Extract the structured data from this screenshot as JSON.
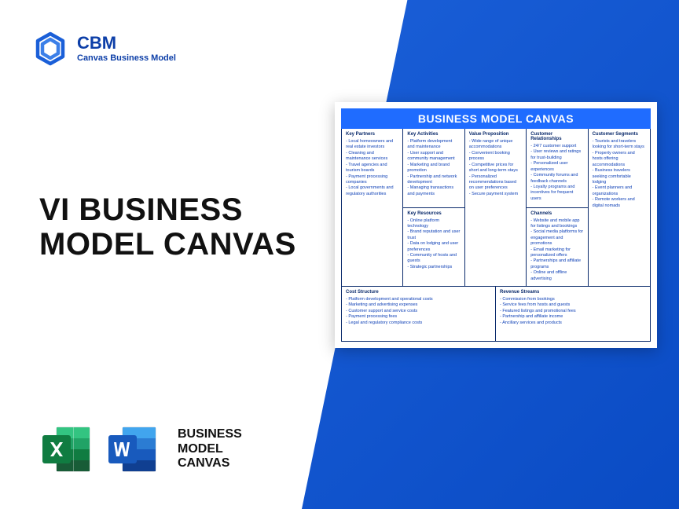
{
  "colors": {
    "brand_blue": "#0d3fa8",
    "canvas_header": "#1f6cff",
    "canvas_border": "#0a2a6b",
    "canvas_text": "#0a3db5",
    "excel_dark": "#107c41",
    "excel_light": "#21a366",
    "word_dark": "#1b5cbe",
    "word_light": "#2b7cd3"
  },
  "logo": {
    "abbr": "CBM",
    "full": "Canvas Business Model"
  },
  "headline": {
    "line1": "VI BUSINESS",
    "line2": "MODEL CANVAS"
  },
  "bottom_label": {
    "line1": "BUSINESS",
    "line2": "MODEL",
    "line3": "CANVAS"
  },
  "canvas": {
    "title": "BUSINESS MODEL CANVAS",
    "sections": {
      "key_partners": {
        "title": "Key Partners",
        "items": [
          "Local homeowners and real estate investors",
          "Cleaning and maintenance services",
          "Travel agencies and tourism boards",
          "Payment processing companies",
          "Local governments and regulatory authorities"
        ]
      },
      "key_activities": {
        "title": "Key Activities",
        "items": [
          "Platform development and maintenance",
          "User support and community management",
          "Marketing and brand promotion",
          "Partnership and network development",
          "Managing transactions and payments"
        ]
      },
      "key_resources": {
        "title": "Key Resources",
        "items": [
          "Online platform technology",
          "Brand reputation and user trust",
          "Data on lodging and user preferences",
          "Community of hosts and guests",
          "Strategic partnerships"
        ]
      },
      "value_proposition": {
        "title": "Value Proposition",
        "items": [
          "Wide range of unique accommodations",
          "Convenient booking process",
          "Competitive prices for short and long-term stays",
          "Personalized recommendations based on user preferences",
          "Secure payment system"
        ]
      },
      "customer_relationships": {
        "title": "Customer Relationships",
        "items": [
          "24/7 customer support",
          "User reviews and ratings for trust-building",
          "Personalized user experiences",
          "Community forums and feedback channels",
          "Loyalty programs and incentives for frequent users"
        ]
      },
      "channels": {
        "title": "Channels",
        "items": [
          "Website and mobile app for listings and bookings",
          "Social media platforms for engagement and promotions",
          "Email marketing for personalized offers",
          "Partnerships and affiliate programs",
          "Online and offline advertising"
        ]
      },
      "customer_segments": {
        "title": "Customer Segments",
        "items": [
          "Tourists and travelers looking for short-term stays",
          "Property owners and hosts offering accommodations",
          "Business travelers seeking comfortable lodging",
          "Event planners and organizations",
          "Remote workers and digital nomads"
        ]
      },
      "cost_structure": {
        "title": "Cost Structure",
        "items": [
          "Platform development and operational costs",
          "Marketing and advertising expenses",
          "Customer support and service costs",
          "Payment processing fees",
          "Legal and regulatory compliance costs"
        ]
      },
      "revenue_streams": {
        "title": "Revenue Streams",
        "items": [
          "Commission from bookings",
          "Service fees from hosts and guests",
          "Featured listings and promotional fees",
          "Partnership and affiliate income",
          "Ancillary services and products"
        ]
      }
    }
  }
}
